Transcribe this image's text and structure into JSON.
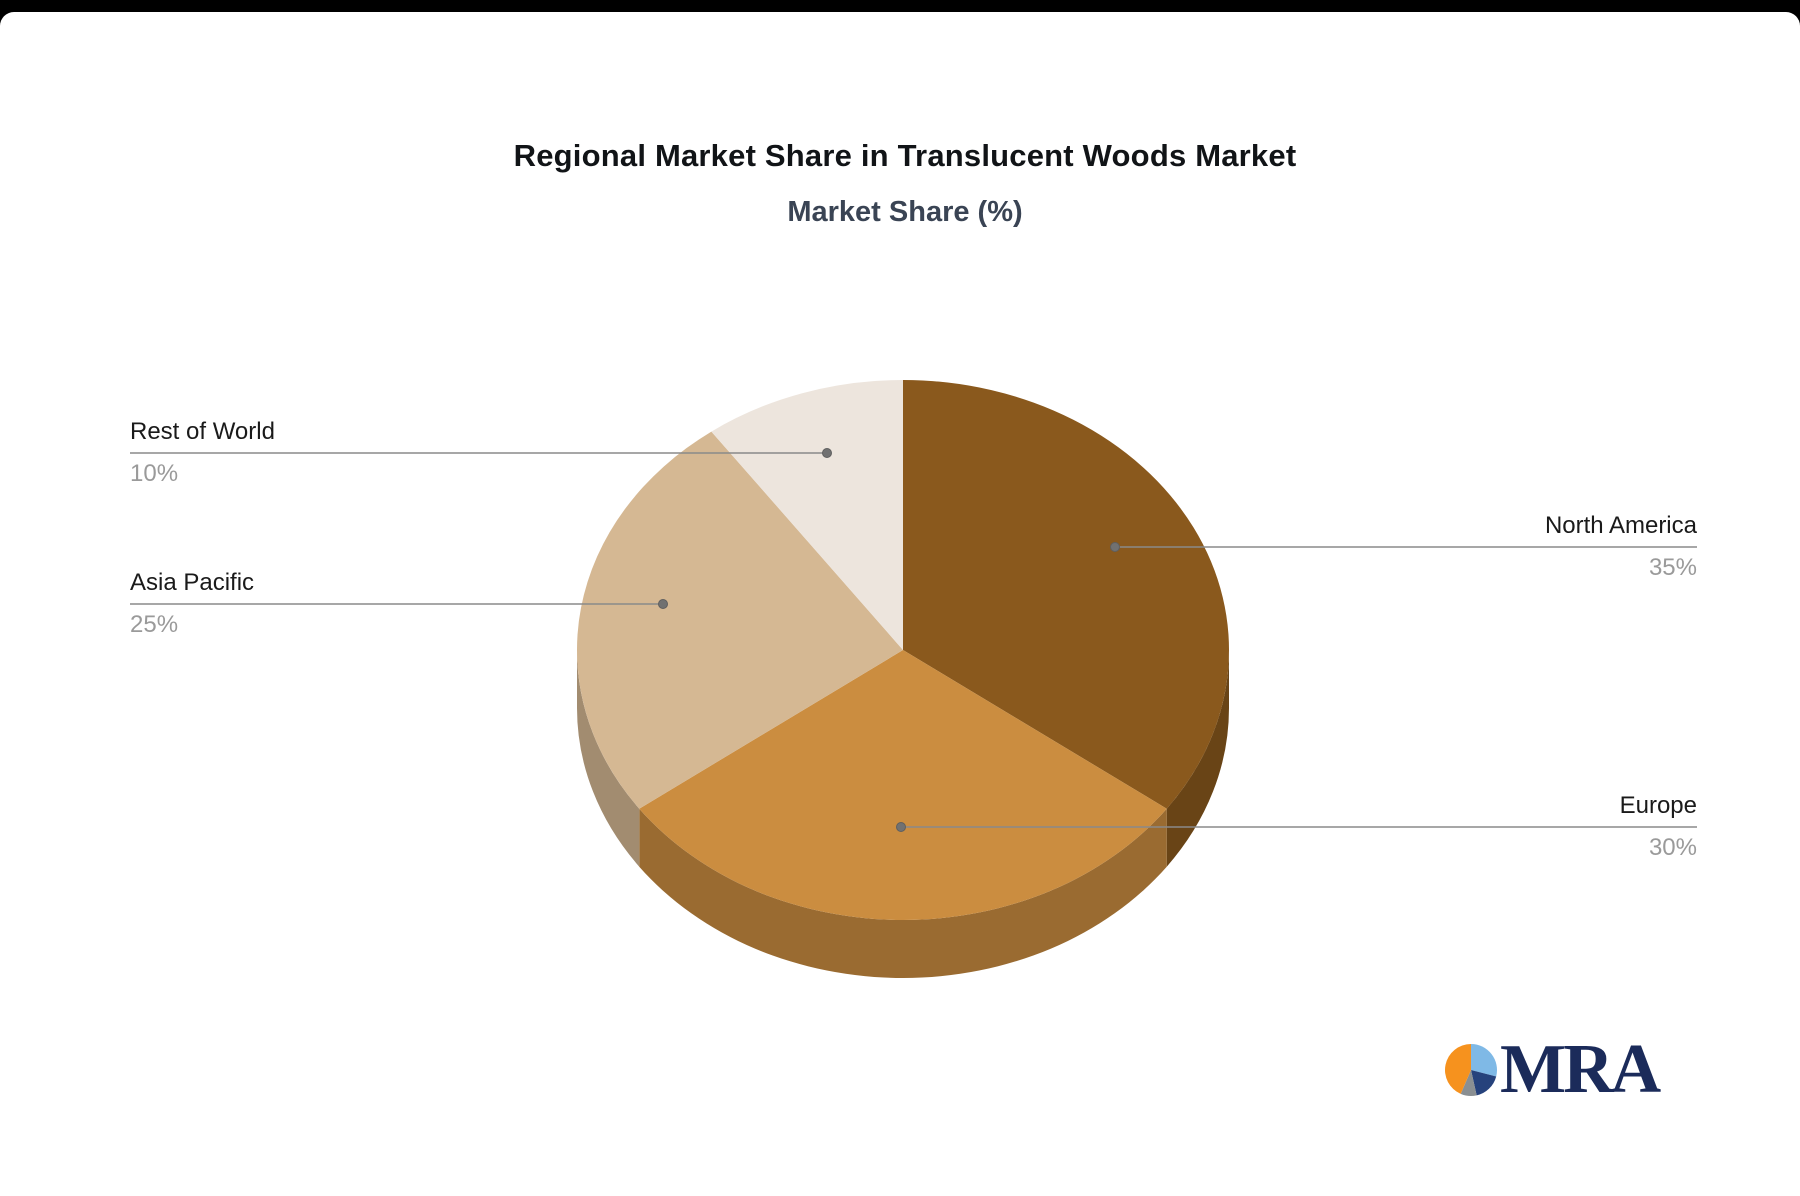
{
  "title": "Regional Market Share in Translucent Woods Market",
  "subtitle": "Market Share (%)",
  "chart_data": {
    "type": "pie",
    "title": "Regional Market Share in Translucent Woods Market",
    "subtitle": "Market Share (%)",
    "unit": "%",
    "effect": "3d",
    "start_angle_deg": -90,
    "direction": "clockwise",
    "legend_position": "leader-labels",
    "categories": [
      "North America",
      "Europe",
      "Asia Pacific",
      "Rest of World"
    ],
    "values": [
      35,
      30,
      25,
      10
    ],
    "value_labels": [
      "35%",
      "30%",
      "25%",
      "10%"
    ],
    "colors": [
      "#8A591D",
      "#CB8D40",
      "#D5B893",
      "#EDE5DD"
    ],
    "label_color": "#1a1a1a",
    "value_color": "#9A9A9A",
    "leader_color": "#8a8a8a"
  },
  "logo": {
    "text": "MRA",
    "text_color": "#1B2B5A",
    "slices": [
      {
        "name": "light-blue",
        "color": "#7FB9E6",
        "pct": 29
      },
      {
        "name": "navy",
        "color": "#26427C",
        "pct": 17.5
      },
      {
        "name": "gray",
        "color": "#8A8F92",
        "pct": 10
      },
      {
        "name": "orange",
        "color": "#F6921E",
        "pct": 43.5
      }
    ]
  }
}
